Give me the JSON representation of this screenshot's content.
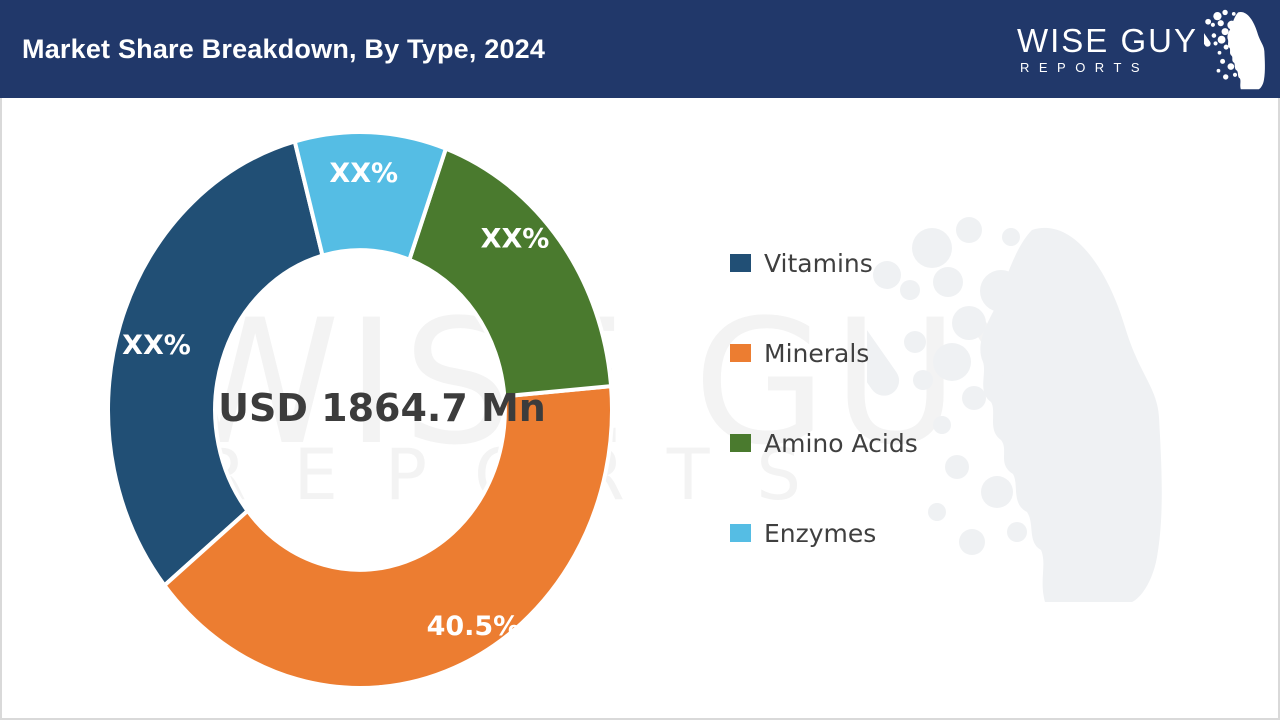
{
  "header": {
    "title": "Market Share Breakdown, By Type, 2024",
    "logo": {
      "line1": "WISE GUY",
      "line2": "REPORTS"
    }
  },
  "watermark": {
    "line1": "WISE GUY",
    "line2": "REPORTS"
  },
  "colors": {
    "header_bg": "#21386a",
    "border": "#d9d9d9",
    "center_text": "#3c3c3c",
    "legend_text": "#3f3f3f",
    "watermark": "#f3f3f3",
    "watermark_face": "#eff1f3"
  },
  "chart_data": {
    "type": "pie",
    "subtype": "donut",
    "title": "Market Share Breakdown, By Type, 2024",
    "center_label": "USD 1864.7 Mn",
    "start_angle_deg": 345,
    "direction": "counterclockwise",
    "inner_radius_ratio": 0.575,
    "legend_position": "right",
    "segments": [
      {
        "name": "Vitamins",
        "value_pct": 31.7,
        "display_label": "XX%",
        "color": "#214f75",
        "label_angle_deg": 286,
        "label_radius_ratio": 0.84
      },
      {
        "name": "Minerals",
        "value_pct": 40.5,
        "display_label": "40.5%",
        "color": "#ec7d31",
        "label_angle_deg": 150,
        "label_radius_ratio": 0.9
      },
      {
        "name": "Amino Acids",
        "value_pct": 18.1,
        "display_label": "XX%",
        "color": "#4a7a2e",
        "label_angle_deg": 45,
        "label_radius_ratio": 0.87
      },
      {
        "name": "Enzymes",
        "value_pct": 9.7,
        "display_label": "XX%",
        "color": "#55bde4",
        "label_angle_deg": 1,
        "label_radius_ratio": 0.85
      }
    ]
  }
}
